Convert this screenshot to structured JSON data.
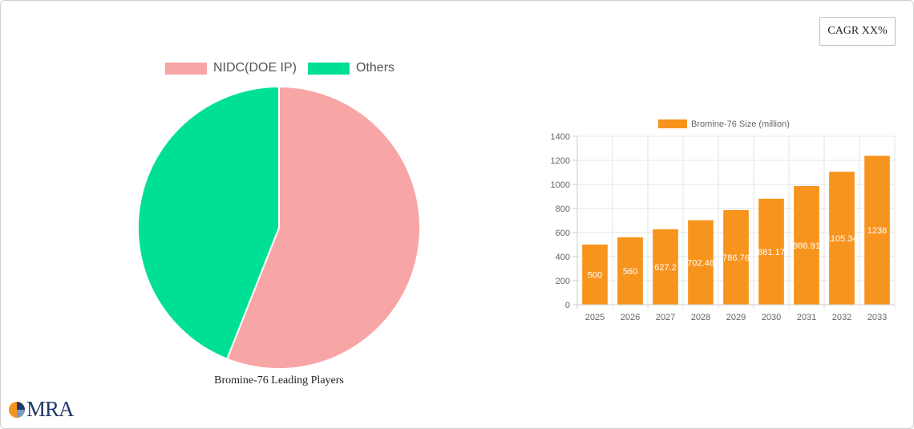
{
  "badge": {
    "cagr_label": "CAGR XX%"
  },
  "pie_chart": {
    "caption": "Bromine-76 Leading Players",
    "legend": [
      {
        "label": "NIDC(DOE IP)",
        "color": "#f8a5a5"
      },
      {
        "label": "Others",
        "color": "#00e095"
      }
    ]
  },
  "logo": {
    "text": "MRA"
  },
  "chart_data": [
    {
      "type": "pie",
      "title": "Bromine-76 Leading Players",
      "labels": [
        "NIDC(DOE IP)",
        "Others"
      ],
      "values": [
        56,
        44
      ],
      "colors": [
        "#f8a5a5",
        "#00e095"
      ],
      "legend": "top"
    },
    {
      "type": "bar",
      "categories": [
        "2025",
        "2026",
        "2027",
        "2028",
        "2029",
        "2030",
        "2031",
        "2032",
        "2033"
      ],
      "series": [
        {
          "name": "Bromine-76 Size (million)",
          "values": [
            500,
            560,
            627.2,
            702.46,
            786.76,
            881.17,
            986.91,
            1105.34,
            1238
          ],
          "color": "#f7941d"
        }
      ],
      "data_labels": [
        "500",
        "560",
        "627.2",
        "702.46",
        "786.76",
        "881.17",
        "986.91",
        "1105.34",
        "1238"
      ],
      "yticks": [
        "0",
        "200",
        "400",
        "600",
        "800",
        "1000",
        "1200",
        "1400"
      ],
      "ylim": [
        0,
        1400
      ],
      "grid": true,
      "legend": "top"
    }
  ]
}
